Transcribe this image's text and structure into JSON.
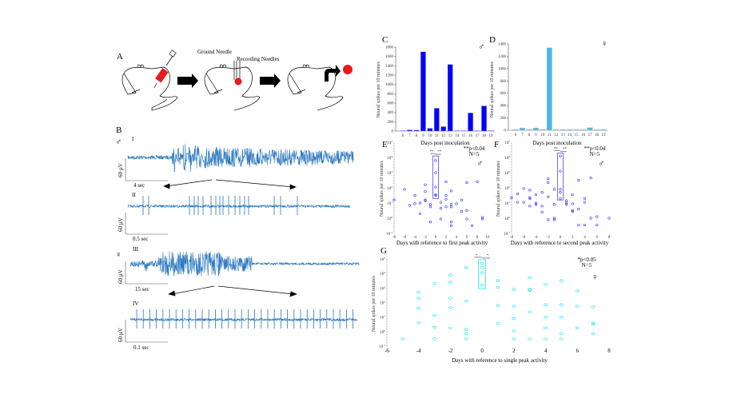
{
  "panel_labels": {
    "A": "A",
    "B": "B",
    "C": "C",
    "D": "D",
    "E": "E",
    "F": "F",
    "G": "G"
  },
  "panel_a": {
    "ground_needle": "Ground Needle",
    "recording_needles": "Recording Needles"
  },
  "panel_b": {
    "male_symbol": "♂",
    "female_symbol": "♀",
    "traces": [
      {
        "roman": "I",
        "scale_v": "60 µV",
        "scale_t": "4 sec"
      },
      {
        "roman": "II",
        "scale_v": "60 µV",
        "scale_t": "0.5 sec"
      },
      {
        "roman": "III",
        "scale_v": "60 µV",
        "scale_t": "15 sec"
      },
      {
        "roman": "IV",
        "scale_v": "60 µV",
        "scale_t": "0.1 sec"
      }
    ]
  },
  "colors": {
    "trace": "#2a78bf",
    "male_bar": "#0000ff",
    "female_bar": "#4ab8e8",
    "male_scatter": "#3333ff",
    "female_scatter": "#00e5e5"
  },
  "chart_data": [
    {
      "id": "C",
      "type": "bar",
      "symbol": "♂",
      "xlabel": "Days post inoculation",
      "ylabel": "Neural spikes per 10 minutes",
      "categories": [
        "6",
        "7",
        "8",
        "9",
        "10",
        "11",
        "12",
        "13",
        "14",
        "15",
        "16",
        "17",
        "18",
        "19"
      ],
      "values": [
        0,
        15,
        10,
        1690,
        50,
        480,
        85,
        1420,
        0,
        0,
        380,
        0,
        530,
        0
      ],
      "ylim": [
        0,
        1800
      ],
      "yticks": [
        0,
        200,
        400,
        600,
        800,
        1000,
        1200,
        1400,
        1600,
        1800
      ]
    },
    {
      "id": "D",
      "type": "bar",
      "symbol": "♀",
      "xlabel": "Days post inoculation",
      "ylabel": "Neural spikes per 10 minutes",
      "categories": [
        "6",
        "7",
        "8",
        "9",
        "10",
        "11",
        "12",
        "13",
        "14",
        "15",
        "16",
        "17",
        "18",
        "19"
      ],
      "values": [
        5,
        30,
        5,
        30,
        5,
        1330,
        5,
        5,
        5,
        5,
        5,
        35,
        5,
        5
      ],
      "ylim": [
        0,
        1400
      ],
      "yticks": [
        0,
        200,
        400,
        600,
        800,
        1000,
        1200,
        1400
      ]
    },
    {
      "id": "E",
      "type": "scatter",
      "yscale": "log",
      "symbol": "♂",
      "annotation": [
        "**p<0.04",
        "N=5"
      ],
      "sig": "**",
      "xlabel": "Days with reference to first peak activity",
      "ylabel": "Neural spikes per 10 minutes",
      "xlim": [
        -8,
        10
      ],
      "xticks": [
        -8,
        -6,
        -4,
        -2,
        0,
        2,
        4,
        6,
        8,
        10
      ],
      "ylim_exp": [
        -1,
        5
      ],
      "highlight_x": 0,
      "highlight_exp": [
        1.3,
        4.1
      ],
      "points": [
        [
          -8,
          1.2
        ],
        [
          -6,
          1.9
        ],
        [
          -5,
          0.85
        ],
        [
          -4,
          1.5
        ],
        [
          -4,
          0.95
        ],
        [
          -3,
          1.0
        ],
        [
          -3,
          0.3
        ],
        [
          -2,
          2.2
        ],
        [
          -2,
          1.75
        ],
        [
          -2,
          1.2
        ],
        [
          -2,
          1.15
        ],
        [
          -1,
          0.9
        ],
        [
          -1,
          0.75
        ],
        [
          -1,
          -0.25
        ],
        [
          0,
          3.8
        ],
        [
          0,
          3.0
        ],
        [
          0,
          2.05
        ],
        [
          0,
          1.55
        ],
        [
          0,
          1.5
        ],
        [
          1,
          1.05
        ],
        [
          1,
          0.65
        ],
        [
          1,
          -0.05
        ],
        [
          2,
          2.4
        ],
        [
          2,
          1.5
        ],
        [
          2,
          1.25
        ],
        [
          2,
          0.75
        ],
        [
          3,
          1.8
        ],
        [
          3,
          0.9
        ],
        [
          3,
          0.75
        ],
        [
          3,
          -0.25
        ],
        [
          3,
          -0.5
        ],
        [
          4,
          0.95
        ],
        [
          5,
          1.2
        ],
        [
          5,
          0.45
        ],
        [
          6,
          2.35
        ],
        [
          6,
          0.5
        ],
        [
          6,
          -0.05
        ],
        [
          7,
          -0.5
        ],
        [
          8,
          2.4
        ],
        [
          9,
          0.05
        ],
        [
          9,
          -0.05
        ]
      ]
    },
    {
      "id": "F",
      "type": "scatter",
      "yscale": "log",
      "symbol": "♂",
      "annotation": [
        "**p<0.04",
        "N=5"
      ],
      "sig": "**",
      "xlabel": "Days with reference to second peak activity",
      "ylabel": "Neural spikes per 10 minutes",
      "xlim": [
        -8,
        8
      ],
      "xticks": [
        -8,
        -6,
        -4,
        -2,
        0,
        2,
        4,
        6,
        8
      ],
      "ylim_exp": [
        -1,
        5
      ],
      "highlight_x": 0,
      "highlight_exp": [
        1.2,
        4.3
      ],
      "points": [
        [
          -8,
          1.35
        ],
        [
          -7,
          1.6
        ],
        [
          -7,
          1.05
        ],
        [
          -6,
          1.95
        ],
        [
          -6,
          1.05
        ],
        [
          -5,
          1.85
        ],
        [
          -5,
          1.35
        ],
        [
          -5,
          1.3
        ],
        [
          -5,
          0.8
        ],
        [
          -4,
          1.55
        ],
        [
          -4,
          1.0
        ],
        [
          -4,
          0.9
        ],
        [
          -3,
          1.7
        ],
        [
          -3,
          0.8
        ],
        [
          -3,
          0.4
        ],
        [
          -2,
          2.6
        ],
        [
          -2,
          2.35
        ],
        [
          -2,
          1.4
        ],
        [
          -2,
          -0.1
        ],
        [
          -1,
          1.9
        ],
        [
          -1,
          0.9
        ],
        [
          -1,
          0.0
        ],
        [
          -1,
          -0.1
        ],
        [
          0,
          4.1
        ],
        [
          0,
          3.1
        ],
        [
          0,
          1.9
        ],
        [
          0,
          1.7
        ],
        [
          0,
          1.3
        ],
        [
          1,
          1.15
        ],
        [
          1,
          1.0
        ],
        [
          1,
          0.9
        ],
        [
          2,
          1.55
        ],
        [
          2,
          0.95
        ],
        [
          2,
          0.5
        ],
        [
          2,
          0.45
        ],
        [
          3,
          2.5
        ],
        [
          3,
          0.6
        ],
        [
          3,
          -0.45
        ],
        [
          4,
          1.3
        ],
        [
          4,
          1.05
        ],
        [
          4,
          -0.45
        ],
        [
          5,
          2.65
        ],
        [
          5,
          0.0
        ],
        [
          6,
          0.1
        ],
        [
          6,
          -0.45
        ],
        [
          8,
          0.0
        ]
      ]
    },
    {
      "id": "G",
      "type": "scatter",
      "yscale": "log",
      "symbol": "♀",
      "annotation": [
        "*p<0.05",
        "N=5"
      ],
      "sig": "*",
      "xlabel": "Days with reference to single peak activity",
      "ylabel": "Neural spikes per 10 minutes",
      "xlim": [
        -6,
        8
      ],
      "xticks": [
        -6,
        -4,
        -2,
        0,
        2,
        4,
        6,
        8
      ],
      "ylim_exp": [
        -1,
        5
      ],
      "highlight_x": 0,
      "highlight_exp": [
        2.95,
        4.95
      ],
      "points": [
        [
          -5,
          -0.5
        ],
        [
          -4,
          2.7
        ],
        [
          -4,
          2.3
        ],
        [
          -4,
          1.6
        ],
        [
          -4,
          0.6
        ],
        [
          -3,
          3.3
        ],
        [
          -3,
          1.1
        ],
        [
          -3,
          0.3
        ],
        [
          -3,
          -0.5
        ],
        [
          -2,
          3.9
        ],
        [
          -2,
          3.4
        ],
        [
          -2,
          2.3
        ],
        [
          -2,
          1.65
        ],
        [
          -2,
          0.25
        ],
        [
          -1,
          4.4
        ],
        [
          -1,
          2.1
        ],
        [
          -1,
          0.15
        ],
        [
          -1,
          -0.15
        ],
        [
          -1,
          -0.5
        ],
        [
          0,
          4.7
        ],
        [
          0,
          4.4
        ],
        [
          0,
          4.05
        ],
        [
          0,
          3.2
        ],
        [
          1,
          3.5
        ],
        [
          1,
          3.05
        ],
        [
          1,
          1.8
        ],
        [
          1,
          0.55
        ],
        [
          2,
          2.9
        ],
        [
          2,
          1.75
        ],
        [
          2,
          0.9
        ],
        [
          2,
          0.05
        ],
        [
          2,
          -0.5
        ],
        [
          3,
          3.7
        ],
        [
          3,
          2.9
        ],
        [
          3,
          2.85
        ],
        [
          3,
          1.35
        ],
        [
          3,
          -0.5
        ],
        [
          4,
          3.25
        ],
        [
          4,
          1.85
        ],
        [
          4,
          1.0
        ],
        [
          4,
          0.25
        ],
        [
          4,
          -0.5
        ],
        [
          5,
          3.5
        ],
        [
          5,
          1.85
        ],
        [
          5,
          1.0
        ],
        [
          5,
          -0.15
        ],
        [
          5,
          -0.5
        ],
        [
          6,
          2.8
        ],
        [
          6,
          1.75
        ],
        [
          6,
          0.25
        ],
        [
          7,
          1.7
        ],
        [
          7,
          0.6
        ],
        [
          7,
          0.5
        ],
        [
          7,
          -0.15
        ]
      ]
    }
  ]
}
